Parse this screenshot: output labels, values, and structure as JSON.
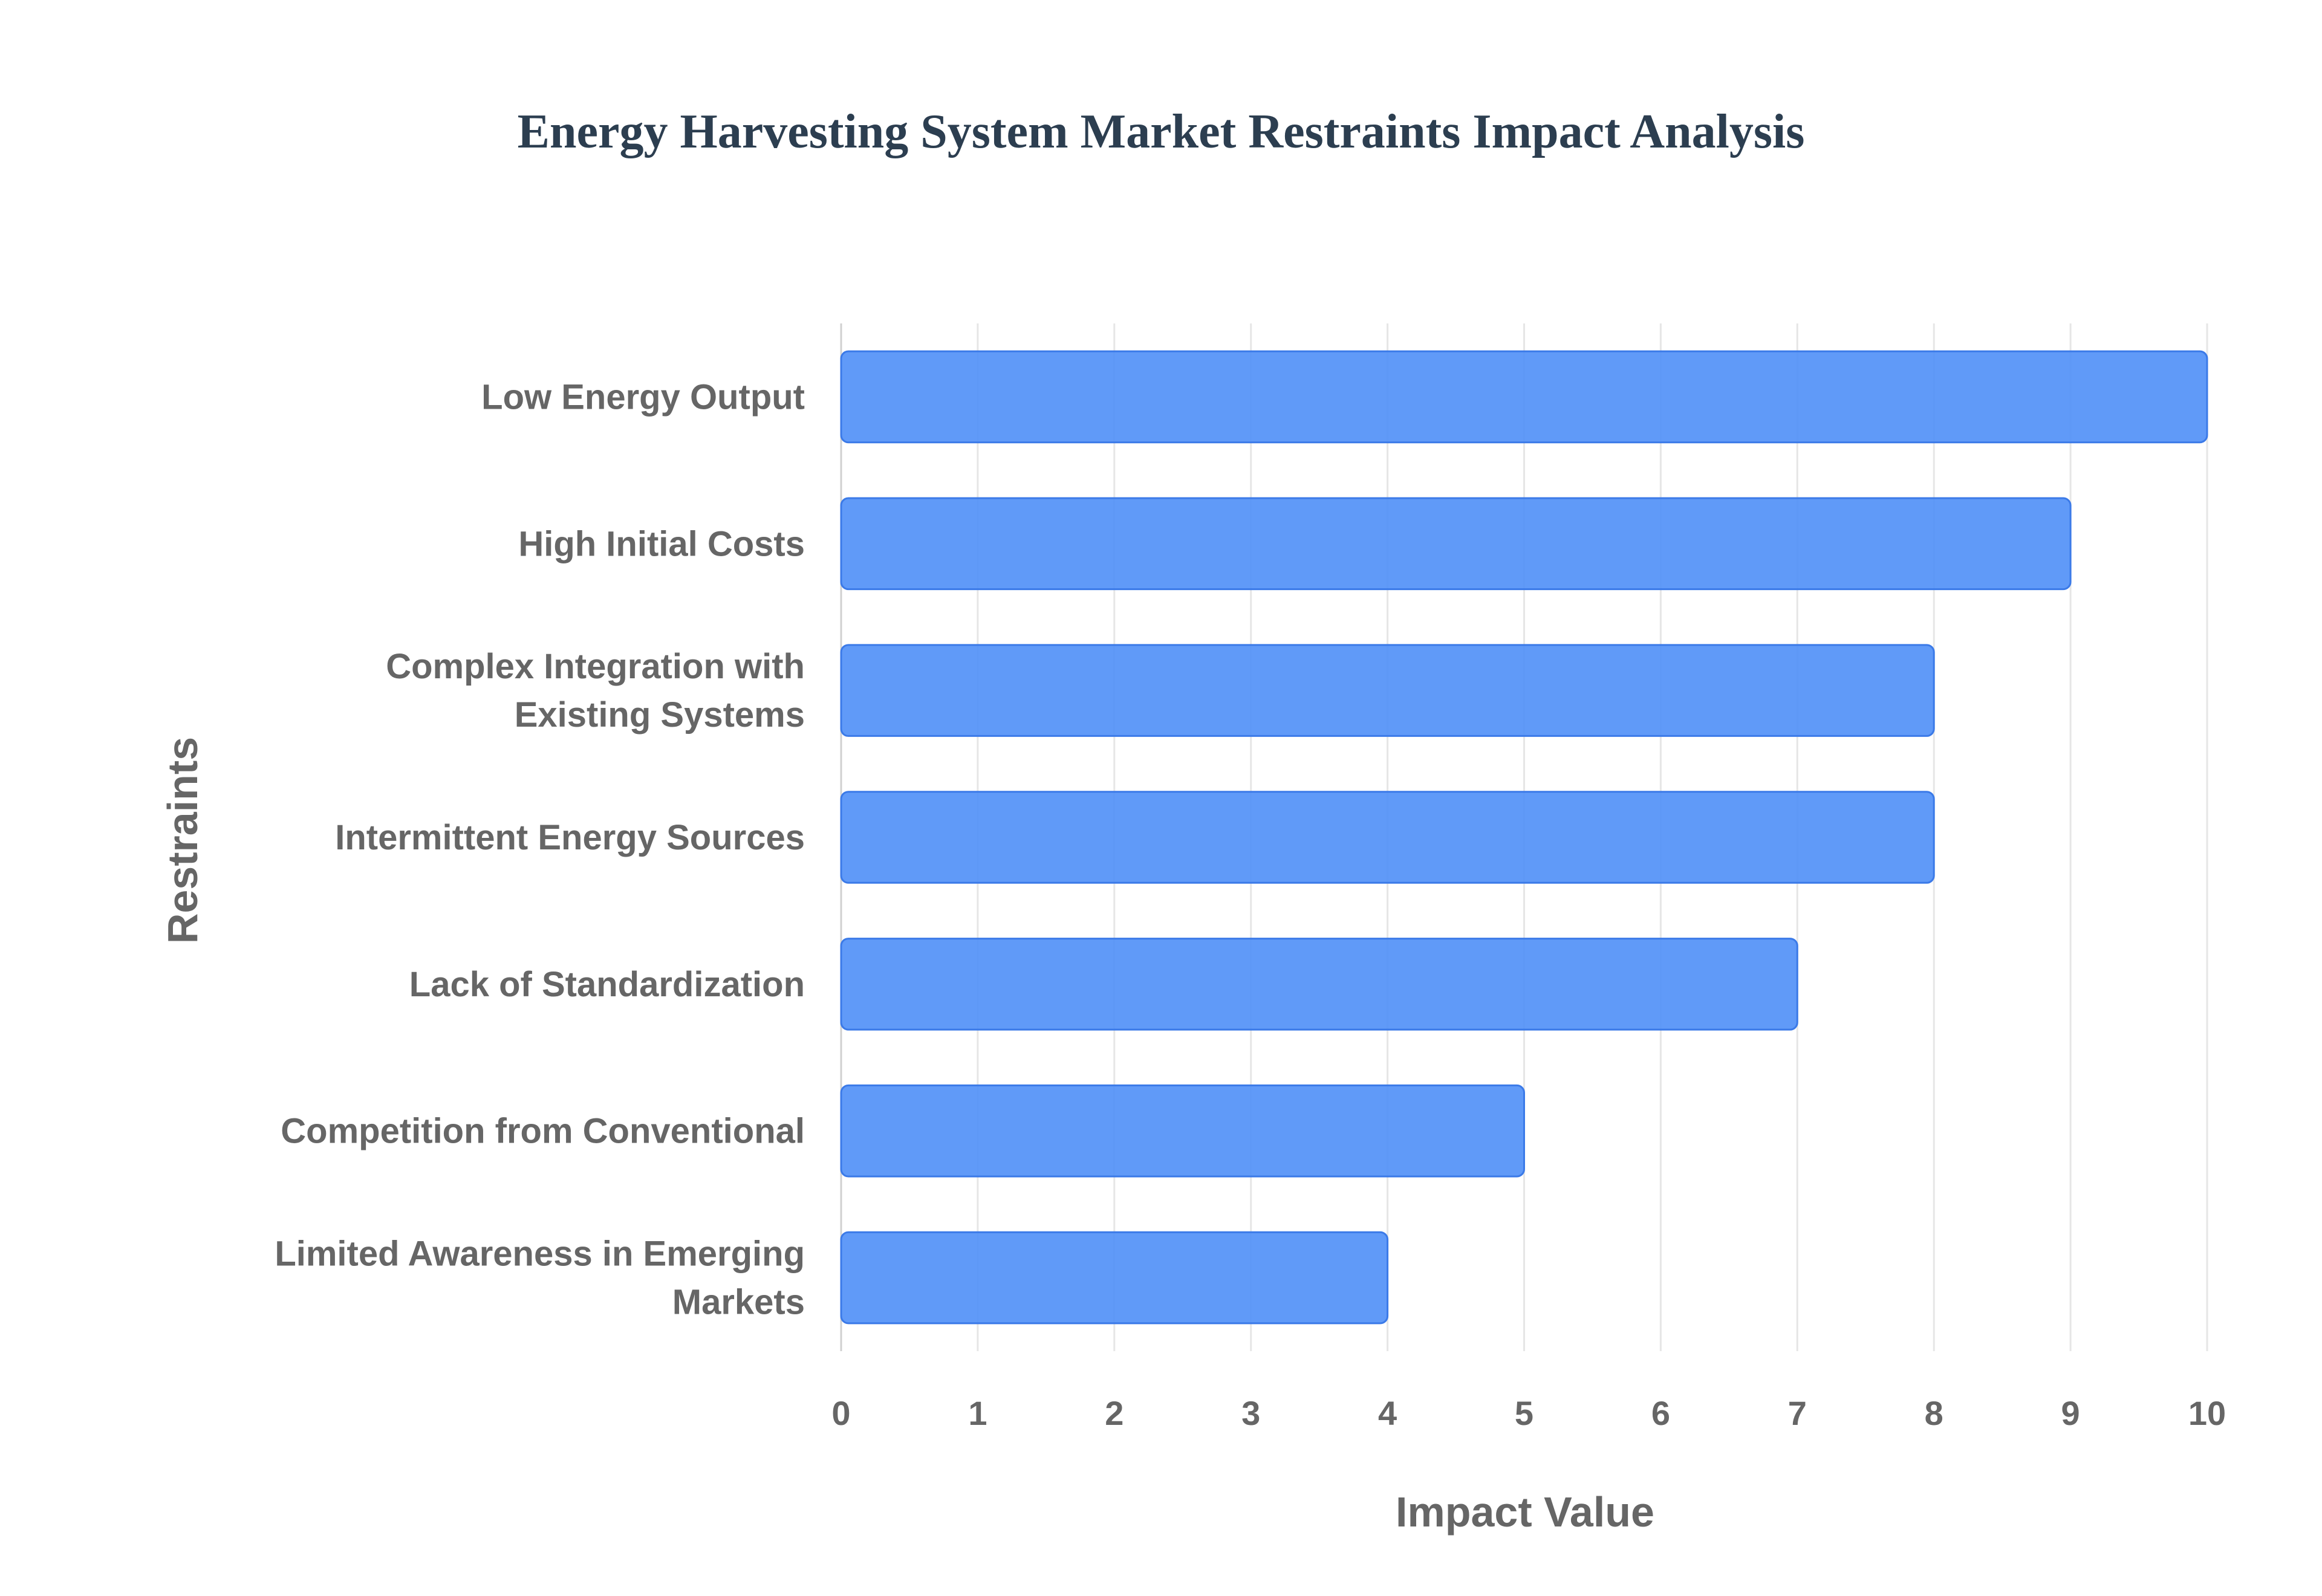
{
  "chart_data": {
    "type": "bar",
    "orientation": "horizontal",
    "title": "Energy Harvesting System Market Restraints Impact Analysis",
    "xlabel": "Impact Value",
    "ylabel": "Restraints",
    "categories": [
      [
        "Low Energy Output"
      ],
      [
        "High Initial Costs"
      ],
      [
        "Complex Integration with",
        "Existing Systems"
      ],
      [
        "Intermittent Energy Sources"
      ],
      [
        "Lack of Standardization"
      ],
      [
        "Competition from Conventional"
      ],
      [
        "Limited Awareness in Emerging",
        "Markets"
      ]
    ],
    "values": [
      10,
      9,
      8,
      8,
      7,
      5,
      4
    ],
    "xlim": [
      0,
      10
    ],
    "xticks": [
      "0",
      "1",
      "2",
      "3",
      "4",
      "5",
      "6",
      "7",
      "8",
      "9",
      "10"
    ],
    "grid": true,
    "legend": "none",
    "colors": {
      "bar_fill": "#4f8ff7",
      "bar_stroke": "#3b7ae8",
      "grid": "#e6e6e6",
      "text": "#666666",
      "title": "#2c3e50"
    }
  }
}
